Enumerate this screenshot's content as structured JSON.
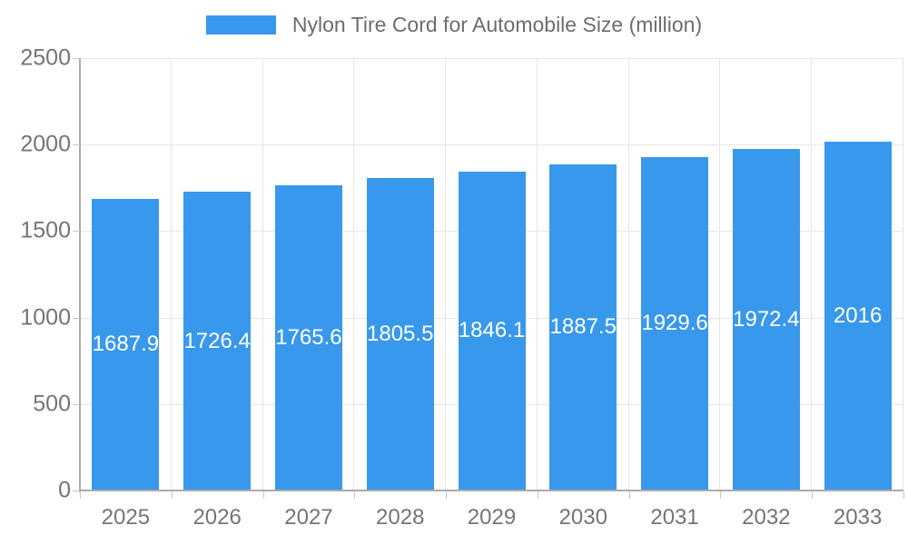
{
  "chart_data": {
    "type": "bar",
    "title": "Nylon Tire Cord for Automobile Size (million)",
    "categories": [
      "2025",
      "2026",
      "2027",
      "2028",
      "2029",
      "2030",
      "2031",
      "2032",
      "2033"
    ],
    "values": [
      1687.9,
      1726.4,
      1765.6,
      1805.5,
      1846.1,
      1887.5,
      1929.6,
      1972.4,
      2016
    ],
    "value_labels": [
      "1687.9",
      "1726.4",
      "1765.6",
      "1805.5",
      "1846.1",
      "1887.5",
      "1929.6",
      "1972.4",
      "2016"
    ],
    "xlabel": "",
    "ylabel": "",
    "ylim": [
      0,
      2500
    ],
    "yticks": [
      0,
      500,
      1000,
      1500,
      2000,
      2500
    ],
    "grid": true,
    "legend_position": "top-center",
    "bar_label_position": "inside-center",
    "colors": {
      "bar": "#3898ec",
      "bar_label": "#ffffff",
      "grid": "#e6e6e6",
      "axis": "#ababab",
      "tick": "#c6c6c6",
      "axis_text": "#757575",
      "legend_text": "#6d6d6d",
      "background": "#ffffff"
    }
  }
}
